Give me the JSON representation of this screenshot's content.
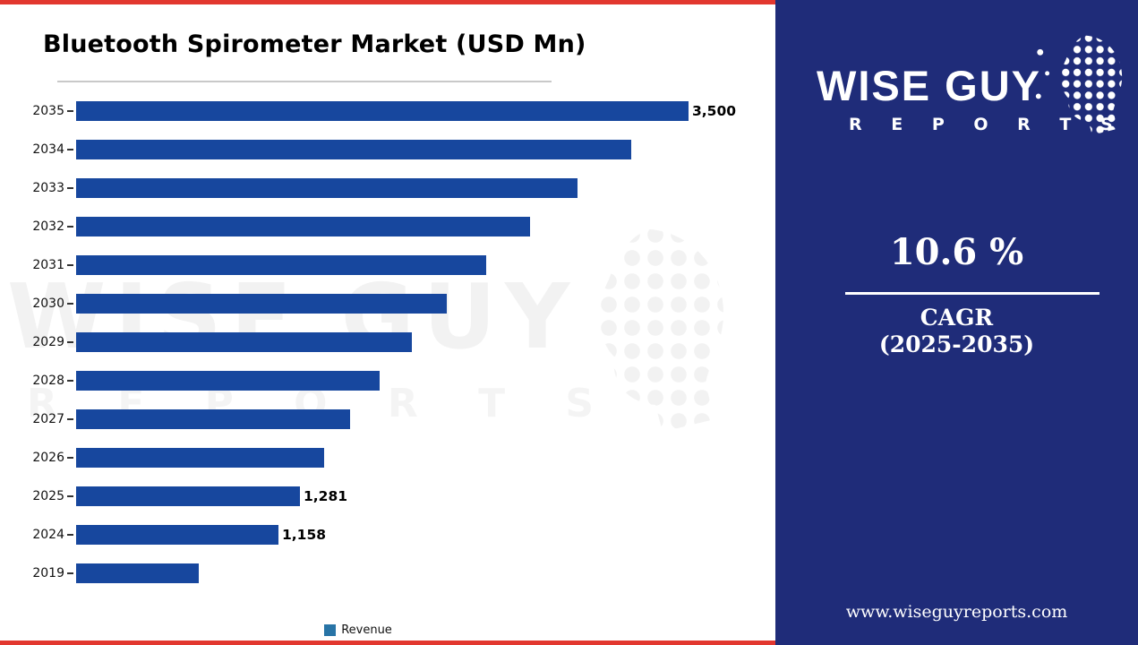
{
  "colors": {
    "accent_red": "#e2372f",
    "bar_blue": "#17479e",
    "sidebar_navy": "#1f2c79",
    "legend_swatch": "#2874a6"
  },
  "chart_data": {
    "type": "bar",
    "orientation": "horizontal",
    "title": "Bluetooth Spirometer Market (USD Mn)",
    "xlabel": "",
    "ylabel": "",
    "categories": [
      "2035",
      "2034",
      "2033",
      "2032",
      "2031",
      "2030",
      "2029",
      "2028",
      "2027",
      "2026",
      "2025",
      "2024",
      "2019"
    ],
    "values": [
      3500,
      3172,
      2868,
      2593,
      2345,
      2120,
      1917,
      1733,
      1567,
      1417,
      1281,
      1158,
      700
    ],
    "value_labels": {
      "2035": "3,500",
      "2025": "1,281",
      "2024": "1,158"
    },
    "xlim": [
      0,
      3500
    ],
    "grid": false,
    "legend_position": "bottom",
    "legend": [
      {
        "label": "Revenue"
      }
    ]
  },
  "watermark": {
    "line1": "WISE GUY",
    "line2": "R E P O R T S"
  },
  "sidebar": {
    "logo_line1": "WISE GUY",
    "logo_line2": "R E P O R T S",
    "cagr_value": "10.6 %",
    "cagr_label": "CAGR",
    "cagr_period": "(2025-2035)",
    "website": "www.wiseguyreports.com"
  }
}
